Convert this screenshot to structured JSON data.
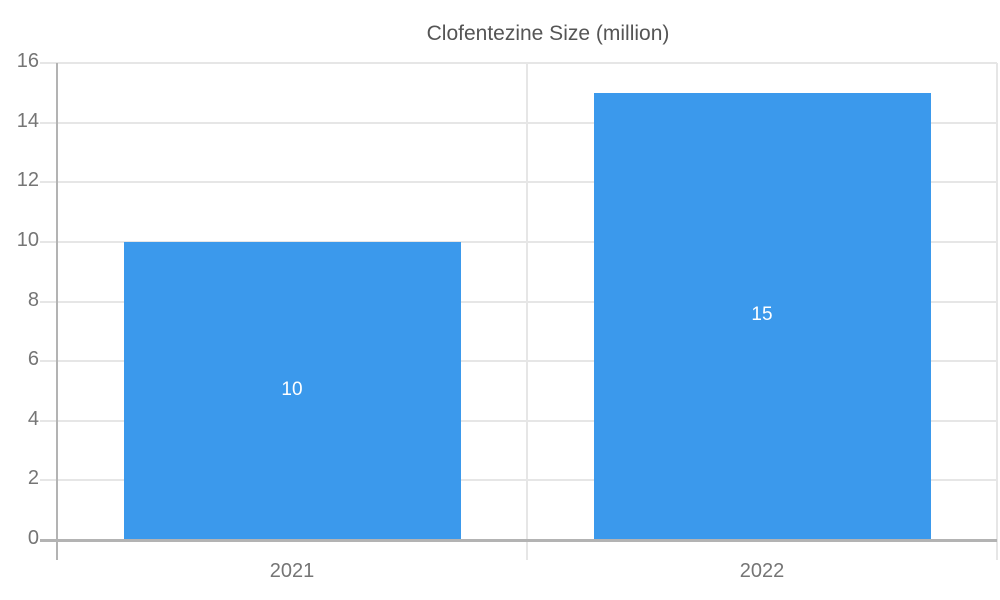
{
  "chart_data": {
    "type": "bar",
    "categories": [
      "2021",
      "2022"
    ],
    "series": [
      {
        "name": "Clofentezine Size (million)",
        "values": [
          10,
          15
        ]
      }
    ],
    "bar_value_labels": [
      "10",
      "15"
    ],
    "title": "",
    "xlabel": "",
    "ylabel": "",
    "ylim": [
      0,
      16
    ],
    "yticks": [
      0,
      2,
      4,
      6,
      8,
      10,
      12,
      14,
      16
    ],
    "grid": true,
    "legend_position": "top"
  },
  "legend": {
    "label": "Clofentezine Size (million)"
  },
  "colors": {
    "bar": "#3B99EC",
    "grid": "#e6e6e6",
    "axis": "#b3b3b3",
    "tick_label": "#757575",
    "legend_text": "#555555",
    "bar_label": "#ffffff",
    "background": "#ffffff"
  }
}
